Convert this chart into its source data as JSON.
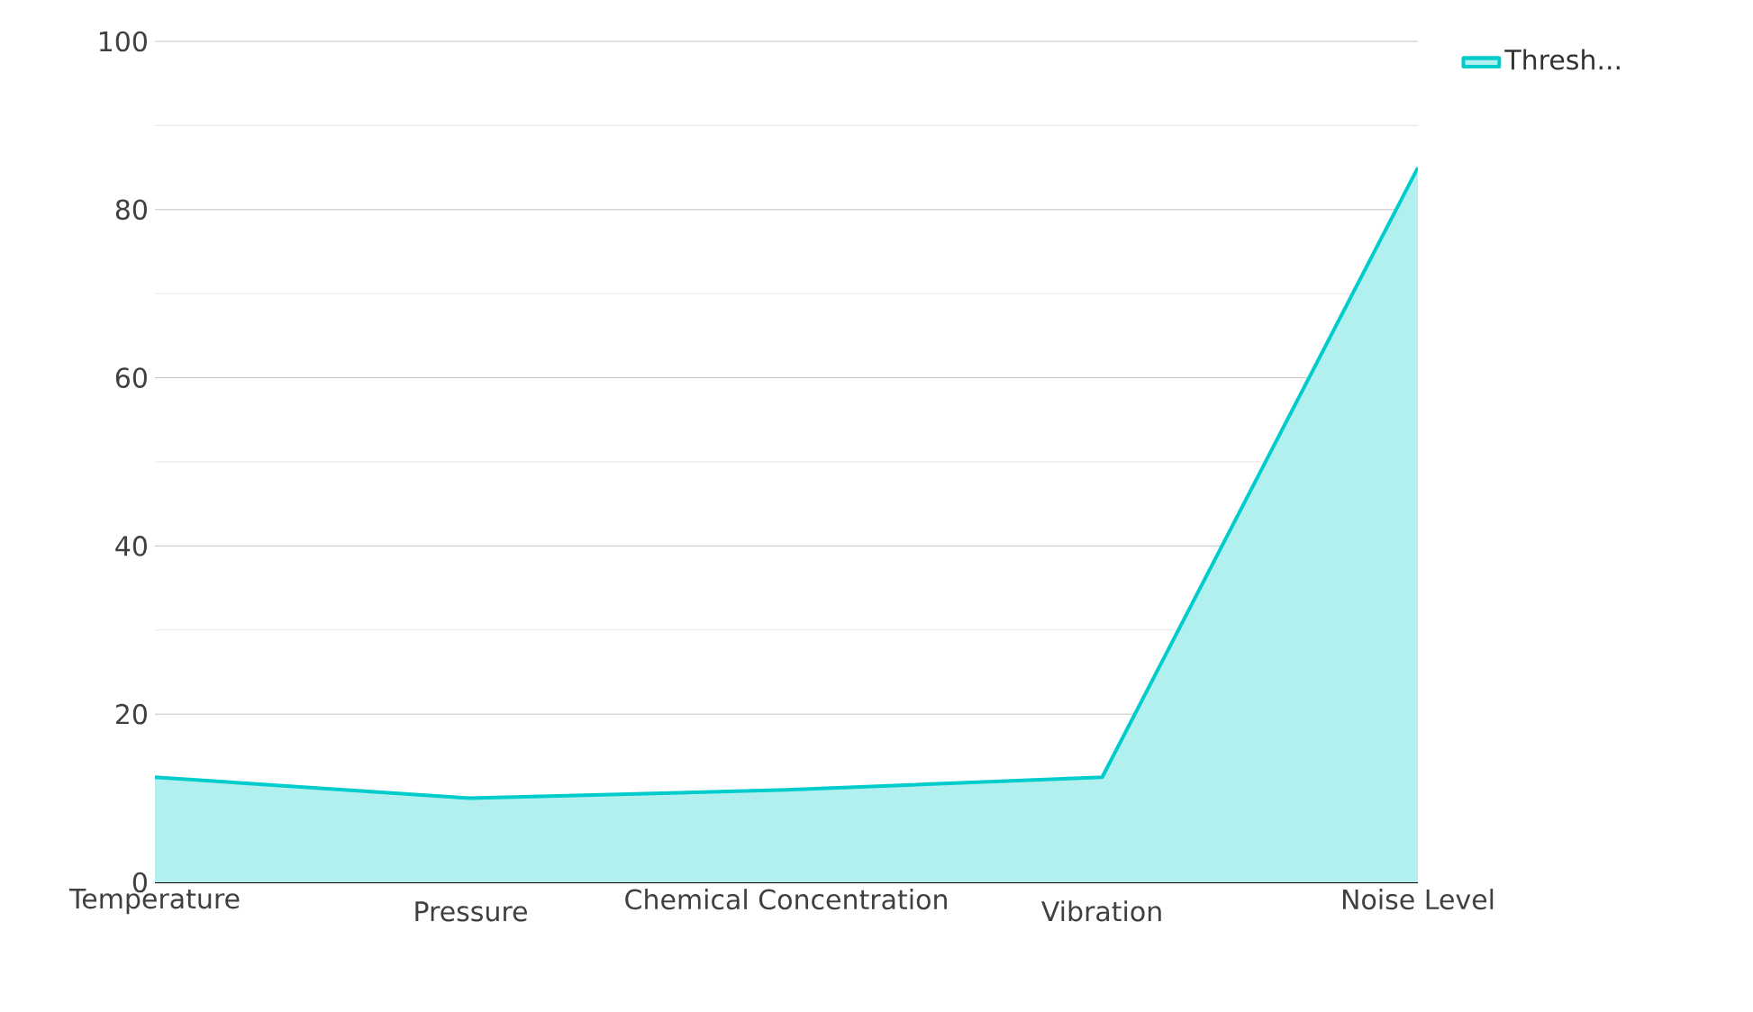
{
  "chart_data": {
    "type": "area",
    "categories": [
      "Temperature",
      "Pressure",
      "Chemical Concentration",
      "Vibration",
      "Noise Level"
    ],
    "series": [
      {
        "name": "Thresh...",
        "color": "#00cccc",
        "values": [
          12.5,
          10,
          11,
          12.5,
          85
        ]
      }
    ],
    "ylim": [
      0,
      100
    ],
    "yticks": [
      0,
      20,
      40,
      60,
      80,
      100
    ],
    "grid": "y",
    "legend": "top right"
  }
}
